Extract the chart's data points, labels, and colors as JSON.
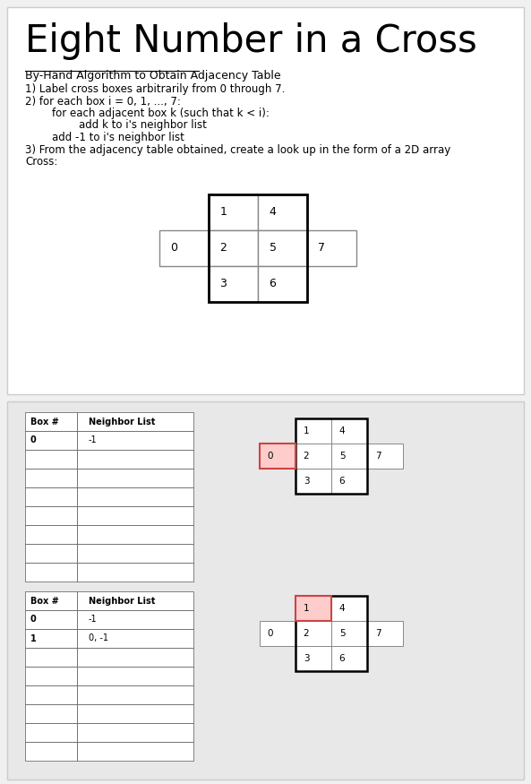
{
  "title": "Eight Number in a Cross",
  "subtitle": "By-Hand Algorithm to Obtain Adjacency Table",
  "algo_text": [
    "1) Label cross boxes arbitrarily from 0 through 7.",
    "2) for each box i = 0, 1, ..., 7:",
    "        for each adjacent box k (such that k < i):",
    "                add k to i's neighbor list",
    "        add -1 to i's neighbor list",
    "3) From the adjacency table obtained, create a look up in the form of a 2D array",
    "Cross:"
  ],
  "bg_color": "#f0f0f0",
  "panel1_bg": "#ffffff",
  "panel2_bg": "#e8e8e8",
  "cross_layout": {
    "cells": [
      {
        "label": "1",
        "col": 1,
        "row": 0
      },
      {
        "label": "4",
        "col": 2,
        "row": 0
      },
      {
        "label": "0",
        "col": 0,
        "row": 1
      },
      {
        "label": "2",
        "col": 1,
        "row": 1
      },
      {
        "label": "5",
        "col": 2,
        "row": 1
      },
      {
        "label": "7",
        "col": 3,
        "row": 1
      },
      {
        "label": "3",
        "col": 1,
        "row": 2
      },
      {
        "label": "6",
        "col": 2,
        "row": 2
      }
    ]
  },
  "table1": {
    "headers": [
      "Box #",
      "Neighbor List"
    ],
    "rows": [
      [
        "0",
        "-1"
      ],
      [
        "",
        ""
      ],
      [
        "",
        ""
      ],
      [
        "",
        ""
      ],
      [
        "",
        ""
      ],
      [
        "",
        ""
      ],
      [
        "",
        ""
      ],
      [
        "",
        ""
      ]
    ]
  },
  "table2": {
    "headers": [
      "Box #",
      "Neighbor List"
    ],
    "rows": [
      [
        "0",
        "-1"
      ],
      [
        "1",
        "0, -1"
      ],
      [
        "",
        ""
      ],
      [
        "",
        ""
      ],
      [
        "",
        ""
      ],
      [
        "",
        ""
      ],
      [
        "",
        ""
      ],
      [
        "",
        ""
      ]
    ]
  },
  "cross1_highlight": "0",
  "cross2_highlight": "1"
}
